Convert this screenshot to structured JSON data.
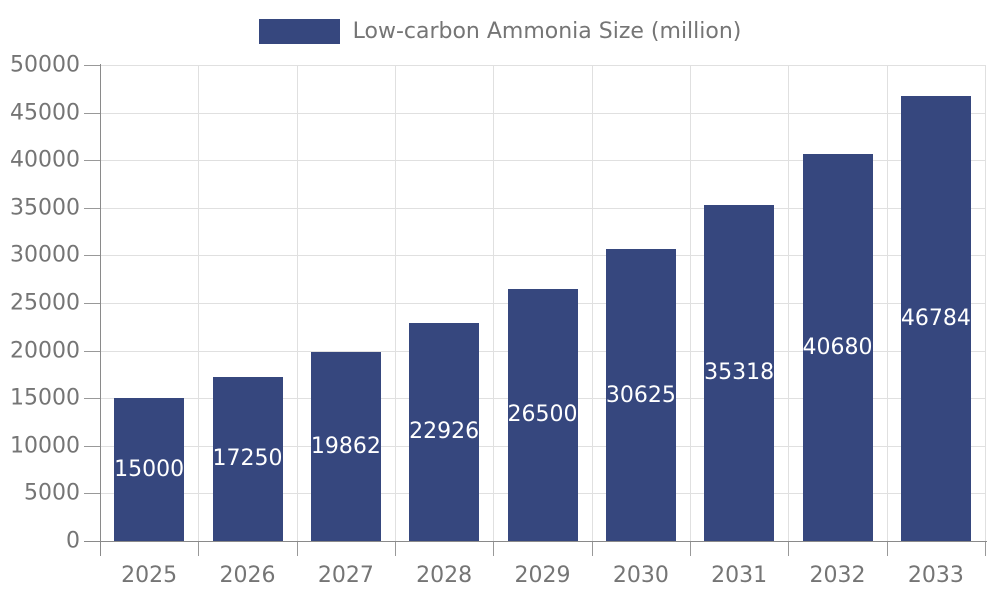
{
  "legend": {
    "label": "Low-carbon Ammonia Size (million)"
  },
  "chart_data": {
    "type": "bar",
    "title": "",
    "categories": [
      "2025",
      "2026",
      "2027",
      "2028",
      "2029",
      "2030",
      "2031",
      "2032",
      "2033"
    ],
    "values": [
      15000,
      17250,
      19862,
      22926,
      26500,
      30625,
      35318,
      40680,
      46784
    ],
    "value_labels": [
      "15000",
      "17250",
      "19862",
      "22926",
      "26500",
      "30625",
      "35318",
      "40680",
      "46784"
    ],
    "series_name": "Low-carbon Ammonia Size (million)",
    "xlabel": "",
    "ylabel": "",
    "ylim": [
      0,
      50000
    ],
    "ytick_step": 5000,
    "ytick_labels": [
      "0",
      "5000",
      "10000",
      "15000",
      "20000",
      "25000",
      "30000",
      "35000",
      "40000",
      "45000",
      "50000"
    ],
    "grid": true,
    "legend_position": "top-center",
    "bar_color": "#36477e",
    "value_label_color": "#ffffff",
    "axis_label_color": "#757575",
    "gridline_color": "#e0e0e0",
    "axis_line_color": "#8a8a8a"
  }
}
